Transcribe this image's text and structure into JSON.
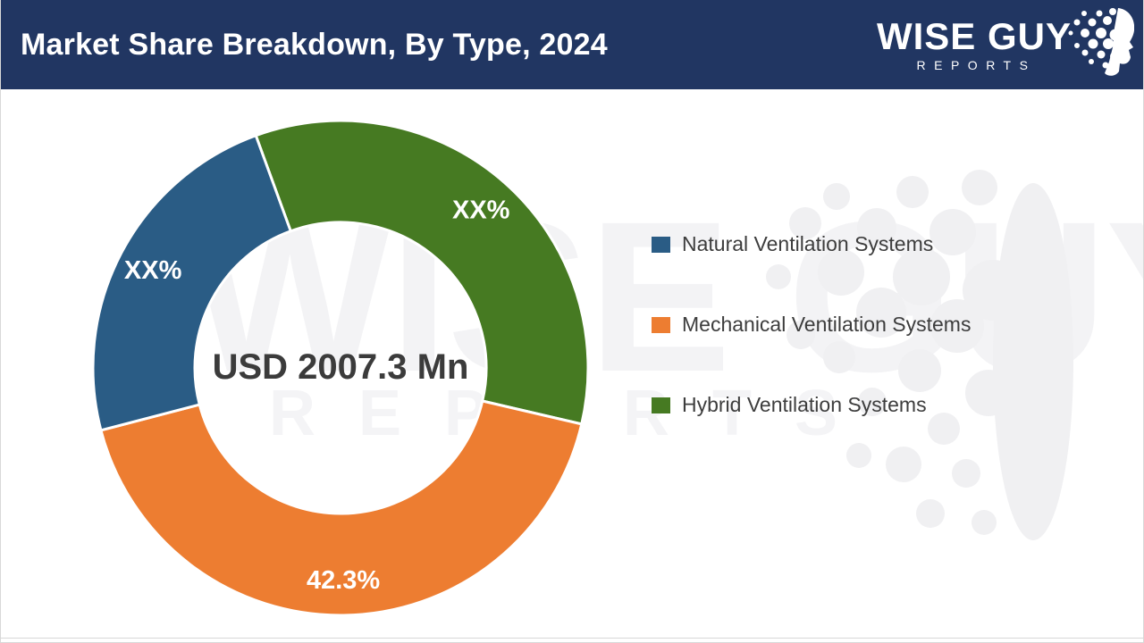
{
  "header": {
    "title": "Market Share Breakdown, By Type, 2024",
    "bg_color": "#213662",
    "logo": {
      "line1": "WISE GUY",
      "line2": "REPORTS"
    }
  },
  "watermark": {
    "line1": "WISE GUY",
    "line2": "REPORTS"
  },
  "chart_data": {
    "type": "pie",
    "subtype": "donut",
    "title": "Market Share Breakdown, By Type, 2024",
    "center_label": "USD 2007.3 Mn",
    "start_angle_deg": -20,
    "inner_radius_ratio": 0.59,
    "legend_position": "right",
    "slices": [
      {
        "name": "Hybrid Ventilation Systems",
        "value_pct": 34.2,
        "data_label": "XX%",
        "color": "#467a22",
        "note": "value hidden on chart, shown as XX%"
      },
      {
        "name": "Mechanical Ventilation Systems",
        "value_pct": 42.3,
        "data_label": "42.3%",
        "color": "#ed7d31"
      },
      {
        "name": "Natural Ventilation Systems",
        "value_pct": 23.5,
        "data_label": "XX%",
        "color": "#2a5c85",
        "note": "value hidden on chart, shown as XX%"
      }
    ],
    "legend": [
      {
        "label": "Natural Ventilation Systems",
        "color": "#2a5c85"
      },
      {
        "label": "Mechanical Ventilation Systems",
        "color": "#ed7d31"
      },
      {
        "label": "Hybrid Ventilation Systems",
        "color": "#467a22"
      }
    ]
  }
}
